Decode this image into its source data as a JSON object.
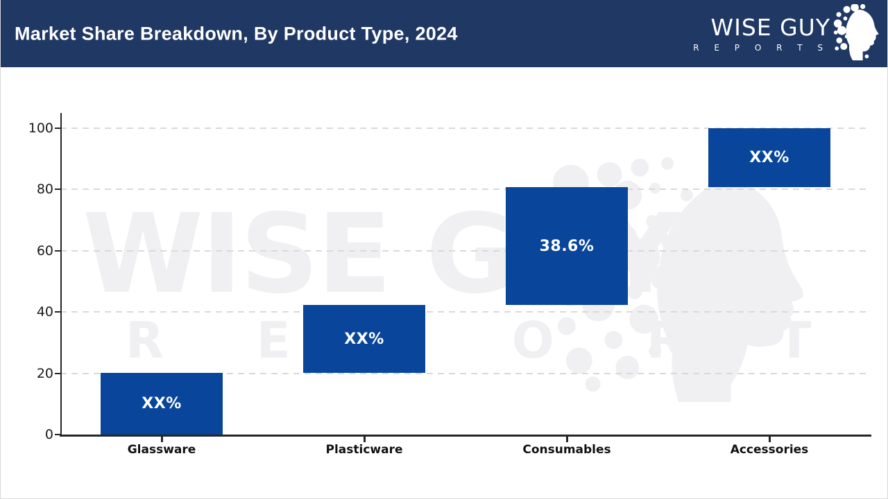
{
  "header": {
    "title": "Market Share Breakdown, By Product Type, 2024",
    "bg_color": "#1f3864",
    "logo": {
      "line1": "WISE GUY",
      "line2": "R E P O R T S"
    }
  },
  "watermark": {
    "line1": "WISE GUY",
    "line2": "R E P O R T S"
  },
  "chart_data": {
    "type": "bar",
    "subtype": "floating-waterfall-segments",
    "title": "Market Share Breakdown, By Product Type, 2024",
    "xlabel": "",
    "ylabel": "",
    "categories": [
      "Glassware",
      "Plasticware",
      "Consumables",
      "Accessories"
    ],
    "segments": [
      {
        "category": "Glassware",
        "start": 0,
        "end": 20.2,
        "label": "XX%"
      },
      {
        "category": "Plasticware",
        "start": 20.2,
        "end": 42.2,
        "label": "XX%"
      },
      {
        "category": "Consumables",
        "start": 42.2,
        "end": 80.8,
        "label": "38.6%"
      },
      {
        "category": "Accessories",
        "start": 80.8,
        "end": 100,
        "label": "XX%"
      }
    ],
    "yticks": [
      0,
      20,
      40,
      60,
      80,
      100
    ],
    "ylim": [
      0,
      105
    ],
    "grid": "horizontal dashed",
    "legend": "none",
    "bar_color": "#09469b",
    "grid_color": "#d9d9d9",
    "axis_color": "#262626"
  }
}
